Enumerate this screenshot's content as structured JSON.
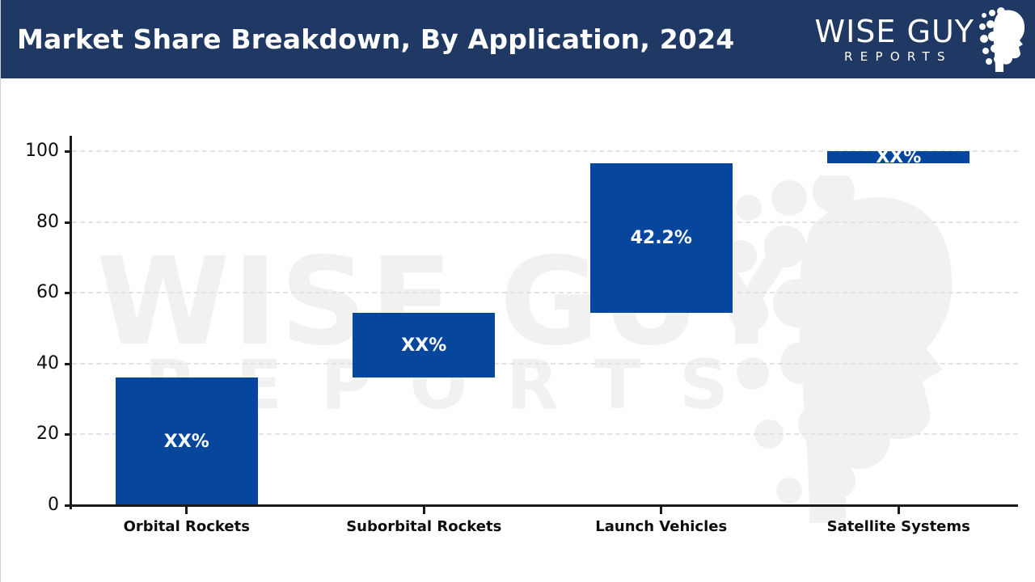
{
  "header": {
    "title": "Market Share Breakdown, By Application, 2024",
    "logo": {
      "line1": "WISE GUY",
      "line2": "REPORTS"
    }
  },
  "watermark": {
    "line1": "WISE GUY",
    "line2": "REPORTS"
  },
  "chart_data": {
    "type": "bar",
    "subtype": "waterfall",
    "title": "Market Share Breakdown, By Application, 2024",
    "xlabel": "",
    "ylabel": "",
    "ylim": [
      0,
      105
    ],
    "yticks": [
      0,
      20,
      40,
      60,
      80,
      100
    ],
    "grid": "horizontal-dashed",
    "legend": "none",
    "categories": [
      "Orbital Rockets",
      "Suborbital Rockets",
      "Launch Vehicles",
      "Satellite Systems"
    ],
    "segments": [
      {
        "category": "Orbital Rockets",
        "start": 0,
        "end": 36.0,
        "value_label": "XX%"
      },
      {
        "category": "Suborbital Rockets",
        "start": 36.0,
        "end": 54.3,
        "value_label": "XX%"
      },
      {
        "category": "Launch Vehicles",
        "start": 54.3,
        "end": 96.5,
        "value_label": "42.2%"
      },
      {
        "category": "Satellite Systems",
        "start": 96.5,
        "end": 100,
        "value_label": "XX%"
      }
    ],
    "colors": {
      "bar": "#06469c",
      "value_label": "#ffffff",
      "header_background": "#1f3864",
      "axis": "#1a1a1a",
      "gridline": "#e3e3e3",
      "watermark": "#f1f1f2"
    }
  }
}
